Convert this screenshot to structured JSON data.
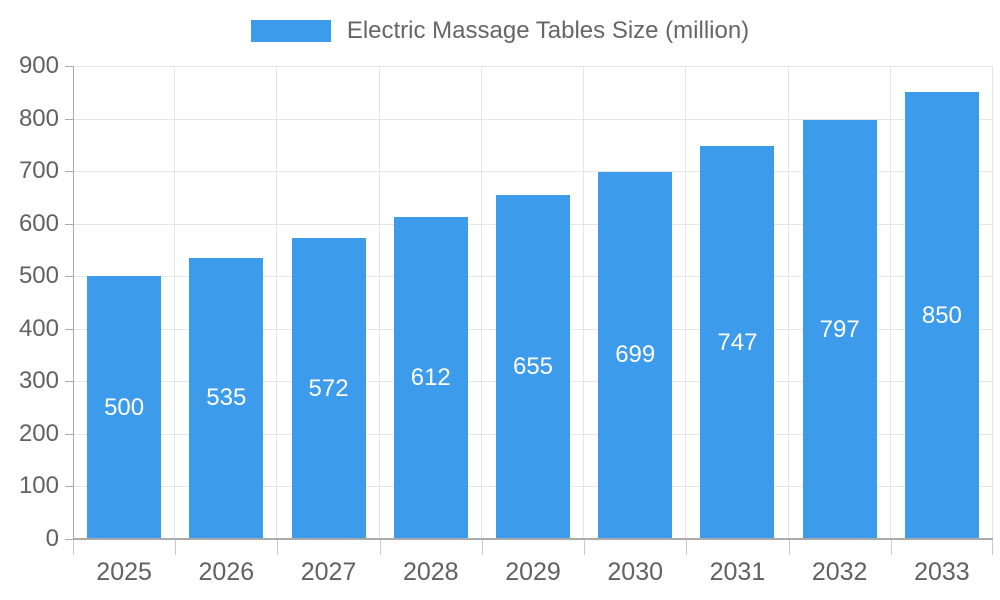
{
  "chart_data": {
    "type": "bar",
    "title": "Electric Massage Tables Size (million)",
    "categories": [
      "2025",
      "2026",
      "2027",
      "2028",
      "2029",
      "2030",
      "2031",
      "2032",
      "2033"
    ],
    "series": [
      {
        "name": "Electric Massage Tables Size (million)",
        "values": [
          500,
          535,
          572,
          612,
          655,
          699,
          747,
          797,
          850
        ]
      }
    ],
    "xlabel": "",
    "ylabel": "",
    "ylim": [
      0,
      900
    ],
    "ytick_step": 100,
    "ytick_labels": [
      "0",
      "100",
      "200",
      "300",
      "400",
      "500",
      "600",
      "700",
      "800",
      "900"
    ],
    "grid": true,
    "legend_position": "top",
    "value_labels_inside_bars": true,
    "colors": {
      "bar": "#3d9bec",
      "value_label": "#ffffff",
      "grid": "#e6e6e6",
      "axis": "#aaaaaa",
      "tick": "#cccccc",
      "tick_label": "#616161",
      "legend_label": "#666666",
      "background": "#ffffff"
    }
  }
}
